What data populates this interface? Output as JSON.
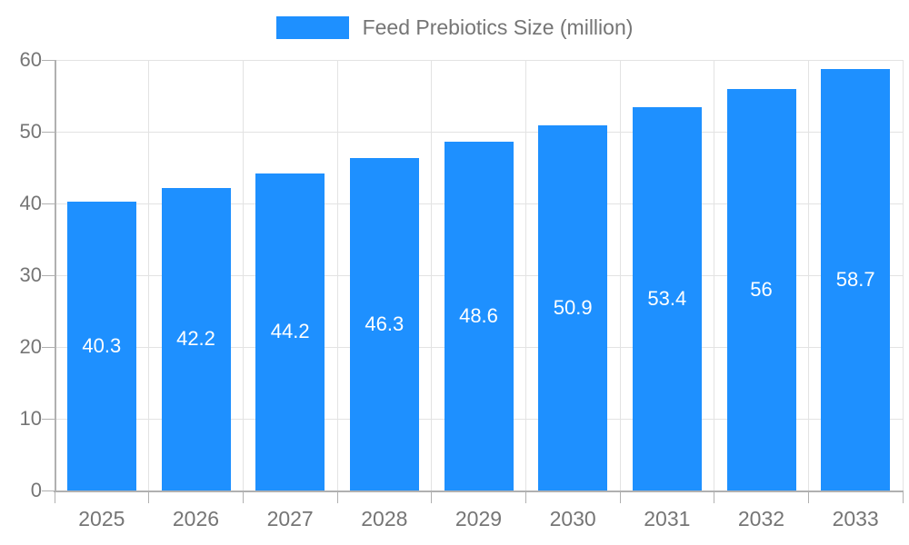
{
  "legend": {
    "label": "Feed Prebiotics Size (million)"
  },
  "chart_data": {
    "type": "bar",
    "title": "Feed Prebiotics Size (million)",
    "categories": [
      "2025",
      "2026",
      "2027",
      "2028",
      "2029",
      "2030",
      "2031",
      "2032",
      "2033"
    ],
    "values": [
      40.3,
      42.2,
      44.2,
      46.3,
      48.6,
      50.9,
      53.4,
      56,
      58.7
    ],
    "series": [
      {
        "name": "Feed Prebiotics Size (million)",
        "values": [
          40.3,
          42.2,
          44.2,
          46.3,
          48.6,
          50.9,
          53.4,
          56,
          58.7
        ]
      }
    ],
    "xlabel": "",
    "ylabel": "",
    "ylim": [
      0,
      60
    ],
    "yticks": [
      0,
      10,
      20,
      30,
      40,
      50,
      60
    ],
    "grid": true,
    "legend_position": "top",
    "value_labels": "inside-center"
  },
  "colors": {
    "bar": "#1e90ff",
    "bar_label": "#ffffff",
    "axis": "#b0b0b0",
    "grid": "#e3e3e3",
    "text": "#757575",
    "background": "#ffffff"
  }
}
